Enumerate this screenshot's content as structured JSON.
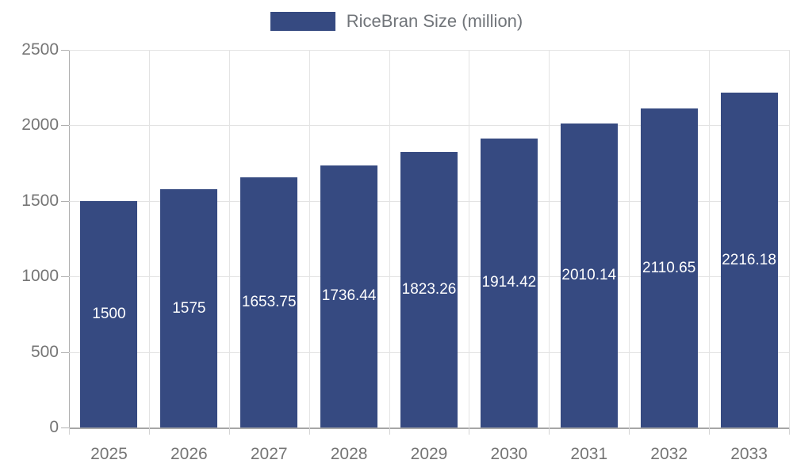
{
  "legend": {
    "label": "RiceBran Size (million)"
  },
  "chart_data": {
    "type": "bar",
    "title": "RiceBran Size (million)",
    "categories": [
      "2025",
      "2026",
      "2027",
      "2028",
      "2029",
      "2030",
      "2031",
      "2032",
      "2033"
    ],
    "values": [
      1500,
      1575,
      1653.75,
      1736.44,
      1823.26,
      1914.42,
      2010.14,
      2110.65,
      2216.18
    ],
    "value_labels": [
      "1500",
      "1575",
      "1653.75",
      "1736.44",
      "1823.26",
      "1914.42",
      "2010.14",
      "2110.65",
      "2216.18"
    ],
    "series": [
      {
        "name": "RiceBran Size (million)",
        "values": [
          1500,
          1575,
          1653.75,
          1736.44,
          1823.26,
          1914.42,
          2010.14,
          2110.65,
          2216.18
        ]
      }
    ],
    "xlabel": "",
    "ylabel": "",
    "ylim": [
      0,
      2500
    ],
    "yticks": [
      0,
      500,
      1000,
      1500,
      2000,
      2500
    ],
    "ytick_labels": [
      "0",
      "500",
      "1000",
      "1500",
      "2000",
      "2500"
    ],
    "grid": true,
    "legend_position": "top",
    "bar_label_position": "inside-center"
  },
  "colors": {
    "bar": "#364a81",
    "bar_label": "#ffffff",
    "axis_label": "#757575",
    "legend_text": "#71757a",
    "gridline": "#e3e3e3",
    "axis_line": "#a6a6a6"
  }
}
